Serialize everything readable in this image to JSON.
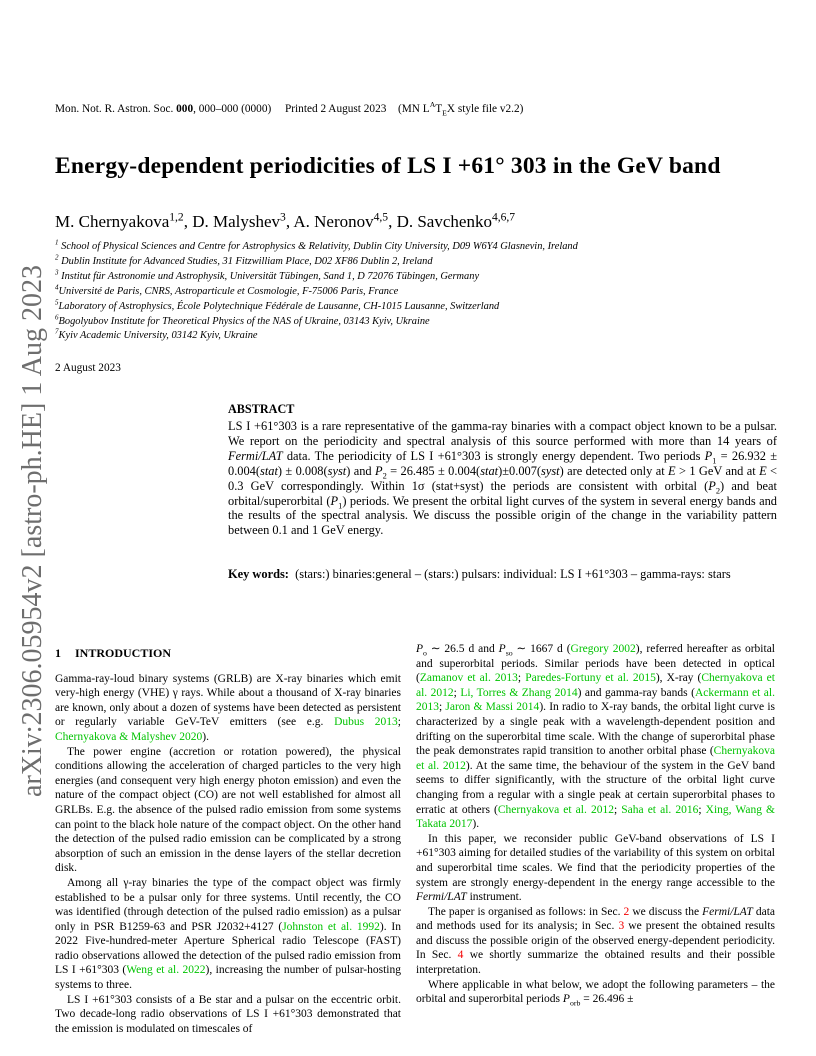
{
  "arxiv_banner": "arXiv:2306.05954v2  [astro-ph.HE]  1 Aug 2023",
  "header": {
    "journal_ref": [
      {
        "t": "Mon. Not. R. Astron. Soc. "
      },
      {
        "t": "000",
        "s": "b"
      },
      {
        "t": ", 000–000 (0000)"
      }
    ],
    "printed": "Printed 2 August 2023",
    "style_file": [
      {
        "t": "(MN L"
      },
      {
        "t": "A",
        "s": "sup"
      },
      {
        "t": "T"
      },
      {
        "t": "E",
        "s": "sub"
      },
      {
        "t": "X style file v2.2)"
      }
    ]
  },
  "title": "Energy-dependent periodicities of LS I +61° 303 in the GeV band",
  "authors": [
    {
      "t": "M. Chernyakova"
    },
    {
      "t": "1,2",
      "s": "sup"
    },
    {
      "t": ", D. Malyshev"
    },
    {
      "t": "3",
      "s": "sup"
    },
    {
      "t": ", A. Neronov"
    },
    {
      "t": "4,5",
      "s": "sup"
    },
    {
      "t": ", D. Savchenko"
    },
    {
      "t": "4,6,7",
      "s": "sup"
    }
  ],
  "affiliations": [
    [
      {
        "t": "1",
        "s": "sup"
      },
      {
        "t": " School of Physical Sciences and Centre for Astrophysics & Relativity, Dublin City University, D09 W6Y4 Glasnevin, Ireland"
      }
    ],
    [
      {
        "t": "2",
        "s": "sup"
      },
      {
        "t": " Dublin Institute for Advanced Studies, 31 Fitzwilliam Place, D02 XF86 Dublin 2, Ireland"
      }
    ],
    [
      {
        "t": "3",
        "s": "sup"
      },
      {
        "t": " Institut für Astronomie und Astrophysik, Universität Tübingen, Sand 1, D 72076 Tübingen, Germany"
      }
    ],
    [
      {
        "t": "4",
        "s": "sup"
      },
      {
        "t": "Université de Paris, CNRS, Astroparticule et Cosmologie, F-75006 Paris, France"
      }
    ],
    [
      {
        "t": "5",
        "s": "sup"
      },
      {
        "t": "Laboratory of Astrophysics, École Polytechnique Fédérale de Lausanne, CH-1015 Lausanne, Switzerland"
      }
    ],
    [
      {
        "t": "6",
        "s": "sup"
      },
      {
        "t": "Bogolyubov Institute for Theoretical Physics of the NAS of Ukraine, 03143 Kyiv, Ukraine"
      }
    ],
    [
      {
        "t": "7",
        "s": "sup"
      },
      {
        "t": "Kyiv Academic University, 03142 Kyiv, Ukraine"
      }
    ]
  ],
  "date": "2 August 2023",
  "abstract": {
    "heading": "ABSTRACT",
    "body": [
      {
        "t": "LS I +61°303 is a rare representative of the gamma-ray binaries with a compact object known to be a pulsar. We report on the periodicity and spectral analysis of this source performed with more than 14 years of "
      },
      {
        "t": "Fermi/LAT",
        "s": "i"
      },
      {
        "t": " data. The periodicity of LS I +61°303 is strongly energy dependent. Two periods "
      },
      {
        "t": "P",
        "s": "i"
      },
      {
        "t": "1",
        "s": "sub"
      },
      {
        "t": " = 26.932 ± 0.004("
      },
      {
        "t": "stat",
        "s": "i"
      },
      {
        "t": ") ± 0.008("
      },
      {
        "t": "syst",
        "s": "i"
      },
      {
        "t": ") and "
      },
      {
        "t": "P",
        "s": "i"
      },
      {
        "t": "2",
        "s": "sub"
      },
      {
        "t": " = 26.485 ± 0.004("
      },
      {
        "t": "stat",
        "s": "i"
      },
      {
        "t": ")±0.007("
      },
      {
        "t": "syst",
        "s": "i"
      },
      {
        "t": ") are detected only at "
      },
      {
        "t": "E",
        "s": "i"
      },
      {
        "t": " > 1 GeV and at "
      },
      {
        "t": "E",
        "s": "i"
      },
      {
        "t": " < 0.3 GeV correspondingly. Within 1σ (stat+syst) the periods are consistent with orbital ("
      },
      {
        "t": "P",
        "s": "i"
      },
      {
        "t": "2",
        "s": "sub"
      },
      {
        "t": ") and beat orbital/superorbital ("
      },
      {
        "t": "P",
        "s": "i"
      },
      {
        "t": "1",
        "s": "sub"
      },
      {
        "t": ") periods. We present the orbital light curves of the system in several energy bands and the results of the spectral analysis. We discuss the possible origin of the change in the variability pattern between 0.1 and 1 GeV energy."
      }
    ]
  },
  "keywords": [
    {
      "t": "Key words:",
      "s": "b"
    },
    {
      "t": "  (stars:) binaries:general – (stars:) pulsars: individual: LS I +61°303 – gamma-rays: stars"
    }
  ],
  "section": {
    "number": "1",
    "heading": "INTRODUCTION"
  },
  "columns": {
    "left": [
      {
        "indent": false,
        "segs": [
          {
            "t": "Gamma-ray-loud binary systems (GRLB) are X-ray binaries which emit very-high energy (VHE) γ rays. While about a thousand of X-ray binaries are known, only about a dozen of systems have been detected as persistent or regularly variable GeV-TeV emitters (see e.g. "
          },
          {
            "t": "Dubus 2013",
            "s": "g"
          },
          {
            "t": "; "
          },
          {
            "t": "Chernyakova & Malyshev 2020",
            "s": "g"
          },
          {
            "t": ")."
          }
        ]
      },
      {
        "indent": true,
        "segs": [
          {
            "t": "The power engine (accretion or rotation powered), the physical conditions allowing the acceleration of charged particles to the very high energies (and consequent very high energy photon emission) and even the nature of the compact object (CO) are not well established for almost all GRLBs. E.g. the absence of the pulsed radio emission from some systems can point to the black hole nature of the compact object. On the other hand the detection of the pulsed radio emission can be complicated by a strong absorption of such an emission in the dense layers of the stellar decretion disk."
          }
        ]
      },
      {
        "indent": true,
        "segs": [
          {
            "t": "Among all γ-ray binaries the type of the compact object was firmly established to be a pulsar only for three systems. Until recently, the CO was identified (through detection of the pulsed radio emission) as a pulsar only in PSR B1259-63 and PSR J2032+4127 ("
          },
          {
            "t": "Johnston et al. 1992",
            "s": "g"
          },
          {
            "t": "). In 2022 Five-hundred-meter Aperture Spherical radio Telescope (FAST) radio observations allowed the detection of the pulsed radio emission from LS I +61°303 ("
          },
          {
            "t": "Weng et al. 2022",
            "s": "g"
          },
          {
            "t": "), increasing the number of pulsar-hosting systems to three."
          }
        ]
      },
      {
        "indent": true,
        "segs": [
          {
            "t": "LS I +61°303 consists of a Be star and a pulsar on the eccentric orbit. Two decade-long radio observations of LS I +61°303 demonstrated that the emission is modulated on timescales of"
          }
        ]
      }
    ],
    "right": [
      {
        "indent": false,
        "segs": [
          {
            "t": "P",
            "s": "i"
          },
          {
            "t": "o",
            "s": "sub"
          },
          {
            "t": " ∼ 26.5 d and "
          },
          {
            "t": "P",
            "s": "i"
          },
          {
            "t": "so",
            "s": "sub"
          },
          {
            "t": " ∼ 1667 d ("
          },
          {
            "t": "Gregory 2002",
            "s": "g"
          },
          {
            "t": "), referred hereafter as orbital and superorbital periods. Similar periods have been detected in optical ("
          },
          {
            "t": "Zamanov et al. 2013",
            "s": "g"
          },
          {
            "t": "; "
          },
          {
            "t": "Paredes-Fortuny et al. 2015",
            "s": "g"
          },
          {
            "t": "), X-ray ("
          },
          {
            "t": "Chernyakova et al. 2012",
            "s": "g"
          },
          {
            "t": "; "
          },
          {
            "t": "Li, Torres & Zhang 2014",
            "s": "g"
          },
          {
            "t": ") and gamma-ray bands ("
          },
          {
            "t": "Ackermann et al. 2013",
            "s": "g"
          },
          {
            "t": "; "
          },
          {
            "t": "Jaron & Massi 2014",
            "s": "g"
          },
          {
            "t": "). In radio to X-ray bands, the orbital light curve is characterized by a single peak with a wavelength-dependent position and drifting on the superorbital time scale. With the change of superorbital phase the peak demonstrates rapid transition to another orbital phase ("
          },
          {
            "t": "Chernyakova et al. 2012",
            "s": "g"
          },
          {
            "t": "). At the same time, the behaviour of the system in the GeV band seems to differ significantly, with the structure of the orbital light curve changing from a regular with a single peak at certain superorbital phases to erratic at others ("
          },
          {
            "t": "Chernyakova et al. 2012",
            "s": "g"
          },
          {
            "t": "; "
          },
          {
            "t": "Saha et al. 2016",
            "s": "g"
          },
          {
            "t": "; "
          },
          {
            "t": "Xing, Wang & Takata 2017",
            "s": "g"
          },
          {
            "t": ")."
          }
        ]
      },
      {
        "indent": true,
        "segs": [
          {
            "t": "In this paper, we reconsider public GeV-band observations of LS I +61°303 aiming for detailed studies of the variability of this system on orbital and superorbital time scales. We find that the periodicity properties of the system are strongly energy-dependent in the energy range accessible to the "
          },
          {
            "t": "Fermi/LAT",
            "s": "i"
          },
          {
            "t": " instrument."
          }
        ]
      },
      {
        "indent": true,
        "segs": [
          {
            "t": "The paper is organised as follows: in Sec. "
          },
          {
            "t": "2",
            "s": "r"
          },
          {
            "t": " we discuss the "
          },
          {
            "t": "Fermi/LAT",
            "s": "i"
          },
          {
            "t": " data and methods used for its analysis; in Sec. "
          },
          {
            "t": "3",
            "s": "r"
          },
          {
            "t": " we present the obtained results and discuss the possible origin of the observed energy-dependent periodicity. In Sec. "
          },
          {
            "t": "4",
            "s": "r"
          },
          {
            "t": " we shortly summarize the obtained results and their possible interpretation."
          }
        ]
      },
      {
        "indent": true,
        "segs": [
          {
            "t": "Where applicable in what below, we adopt the following parameters – the orbital and superorbital periods "
          },
          {
            "t": "P",
            "s": "i"
          },
          {
            "t": "orb",
            "s": "sub"
          },
          {
            "t": " = 26.496 ±"
          }
        ]
      }
    ]
  }
}
